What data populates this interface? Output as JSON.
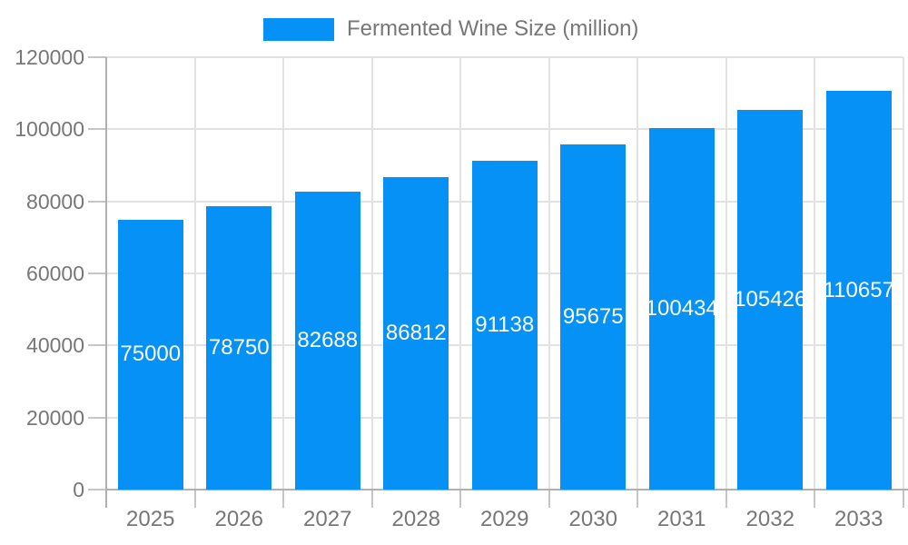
{
  "chart_data": {
    "type": "bar",
    "title": "",
    "legend": "Fermented Wine Size (million)",
    "legend_position": "top",
    "categories": [
      "2025",
      "2026",
      "2027",
      "2028",
      "2029",
      "2030",
      "2031",
      "2032",
      "2033"
    ],
    "series": [
      {
        "name": "Fermented Wine Size (million)",
        "values": [
          75000,
          78750,
          82688,
          86812,
          91138,
          95675,
          100434,
          105426,
          110657
        ]
      }
    ],
    "xlabel": "",
    "ylabel": "",
    "ylim": [
      0,
      120000
    ],
    "ytick_step": 20000,
    "ytick_labels": [
      "0",
      "20000",
      "40000",
      "60000",
      "80000",
      "100000",
      "120000"
    ],
    "grid": true,
    "bar_value_labels_inside": true,
    "colors": {
      "bar": "#0591f5",
      "bar_value_text": "#ffffff",
      "axis_text": "#777777",
      "axis_line": "#b0b0b0",
      "tick": "#c6c6c6",
      "grid_line": "#e2e2e2",
      "background": "#ffffff"
    }
  }
}
